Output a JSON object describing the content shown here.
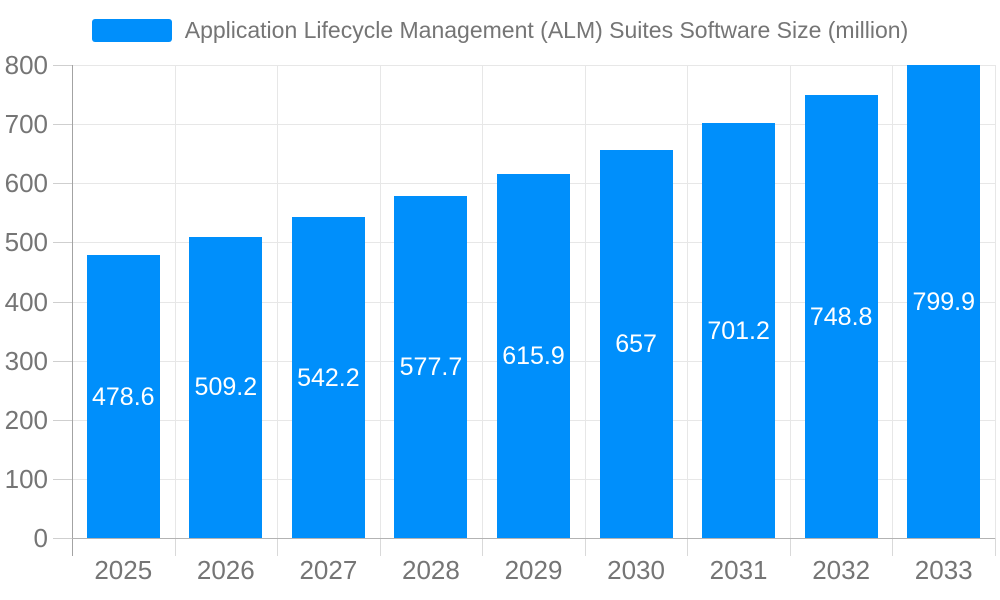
{
  "chart_data": {
    "type": "bar",
    "title": "Application Lifecycle Management (ALM) Suites Software Size (million)",
    "categories": [
      "2025",
      "2026",
      "2027",
      "2028",
      "2029",
      "2030",
      "2031",
      "2032",
      "2033"
    ],
    "values": [
      478.6,
      509.2,
      542.2,
      577.7,
      615.9,
      657,
      701.2,
      748.8,
      799.9
    ],
    "xlabel": "",
    "ylabel": "",
    "ylim": [
      0,
      800
    ],
    "ytick_step": 100,
    "grid": "on",
    "legend_position": "top-center",
    "colors": {
      "bar": "#008FFB",
      "grid_line": "#e7e7e7",
      "y_axis_line": "#a3a3a3",
      "x_axis_line": "#b3b3b3",
      "y_tick": "#cfcfcf",
      "x_tick": "#d9d9d9",
      "axis_label": "#757575",
      "value_label": "#ffffff",
      "legend_text": "#757575",
      "background": "#ffffff"
    }
  }
}
